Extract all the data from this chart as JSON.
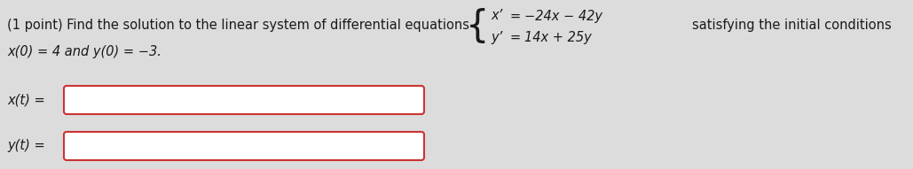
{
  "background_color": "#dcdcdc",
  "text_color": "#1a1a1a",
  "font_size": 10.5,
  "line1_left": "(1 point) Find the solution to the linear system of differential equations",
  "line1_right": "satisfying the initial conditions",
  "eq1_parts": [
    "x’",
    "=",
    "−24x − 42y"
  ],
  "eq2_parts": [
    "y’",
    "=",
    "14x + 25y"
  ],
  "line2": "x(0) = 4 and y(0) = −3.",
  "label_xt": "x(t) =",
  "label_yt": "y(t) =",
  "box_edge_color": "#cc3333",
  "box_fill": "#ffffff",
  "brace_char": "{",
  "brace_fontsize": 30
}
